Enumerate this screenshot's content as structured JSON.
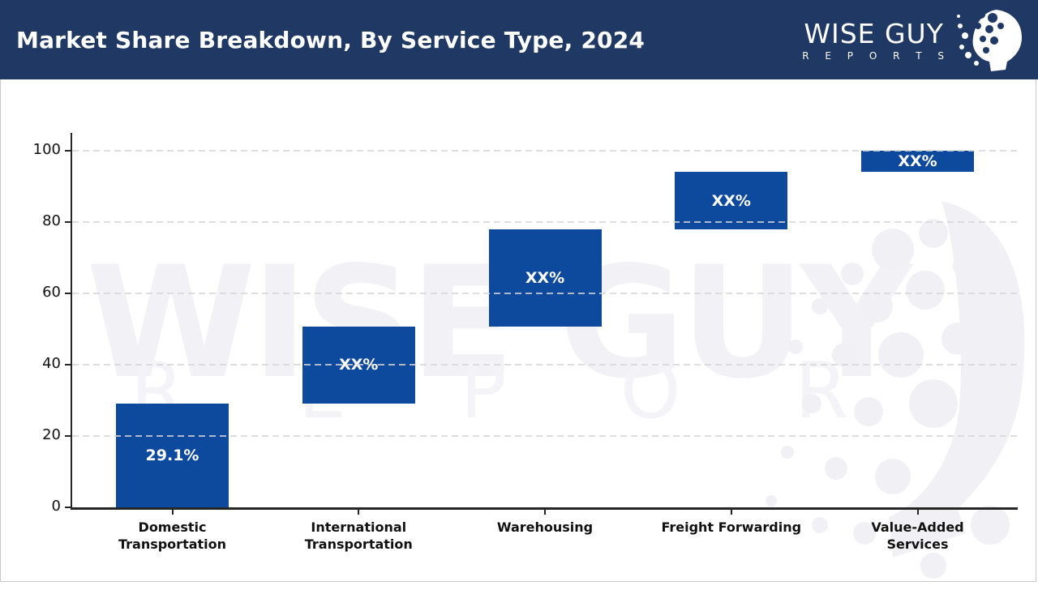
{
  "header": {
    "title": "Market Share Breakdown, By Service Type, 2024",
    "logo": {
      "line1": "WISE GUY",
      "line2": "R E P O R T S"
    }
  },
  "watermark": {
    "line1": "WISE GUY",
    "line2": "R E P O R T S"
  },
  "colors": {
    "header_bg": "#1f3864",
    "bar": "#0d4a9e",
    "bar_label": "#ffffff",
    "axis": "#262626",
    "grid": "#d9d9d9",
    "watermark": "#f2f2f6"
  },
  "chart_data": {
    "type": "bar",
    "subtype": "waterfall-floating-bars",
    "title": "Market Share Breakdown, By Service Type, 2024",
    "categories": [
      "Domestic\nTransportation",
      "International\nTransportation",
      "Warehousing",
      "Freight Forwarding",
      "Value-Added\nServices"
    ],
    "segments": [
      {
        "category": "Domestic Transportation",
        "start": 0,
        "end": 29.1,
        "label": "29.1%"
      },
      {
        "category": "International Transportation",
        "start": 29.1,
        "end": 50.7,
        "label": "XX%"
      },
      {
        "category": "Warehousing",
        "start": 50.7,
        "end": 78,
        "label": "XX%"
      },
      {
        "category": "Freight Forwarding",
        "start": 78,
        "end": 94,
        "label": "XX%"
      },
      {
        "category": "Value-Added Services",
        "start": 94,
        "end": 100,
        "label": "XX%"
      }
    ],
    "y_ticks": [
      0,
      20,
      40,
      60,
      80,
      100
    ],
    "ylim": [
      0,
      105
    ],
    "xlabel": "",
    "ylabel": "",
    "grid": "horizontal-dashed",
    "legend": "none",
    "bar_color": "#0d4a9e"
  }
}
